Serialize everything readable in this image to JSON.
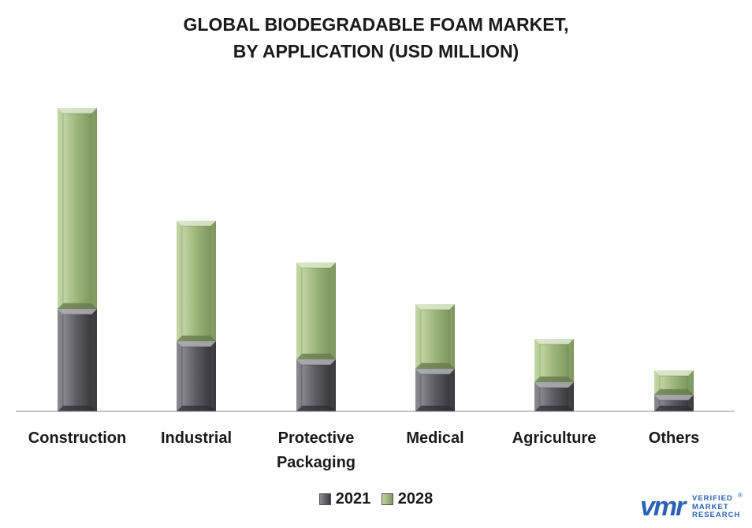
{
  "colors": {
    "series_2021": "#6b6b70",
    "series_2028": "#a6bc85",
    "axis": "#888888",
    "logo": "#2b62b8"
  },
  "chart_data": {
    "type": "bar",
    "stacked": true,
    "title_lines": [
      "GLOBAL BIODEGRADABLE FOAM MARKET,",
      "BY APPLICATION (USD MILLION)"
    ],
    "categories": [
      [
        "Construction"
      ],
      [
        "Industrial"
      ],
      [
        "Protective",
        "Packaging"
      ],
      [
        "Medical"
      ],
      [
        "Agriculture"
      ],
      [
        "Others"
      ]
    ],
    "series": [
      {
        "name": "2021",
        "values": [
          130,
          89,
          66,
          54,
          37,
          21
        ]
      },
      {
        "name": "2028",
        "values": [
          255,
          153,
          123,
          82,
          55,
          31
        ]
      }
    ],
    "ylim": [
      0,
      400
    ],
    "grid": false,
    "legend": "bottom-center"
  },
  "logo": {
    "mark": "vmr",
    "line1": "VERIFIED",
    "line2": "MARKET",
    "line3": "RESEARCH",
    "reg": "®"
  }
}
